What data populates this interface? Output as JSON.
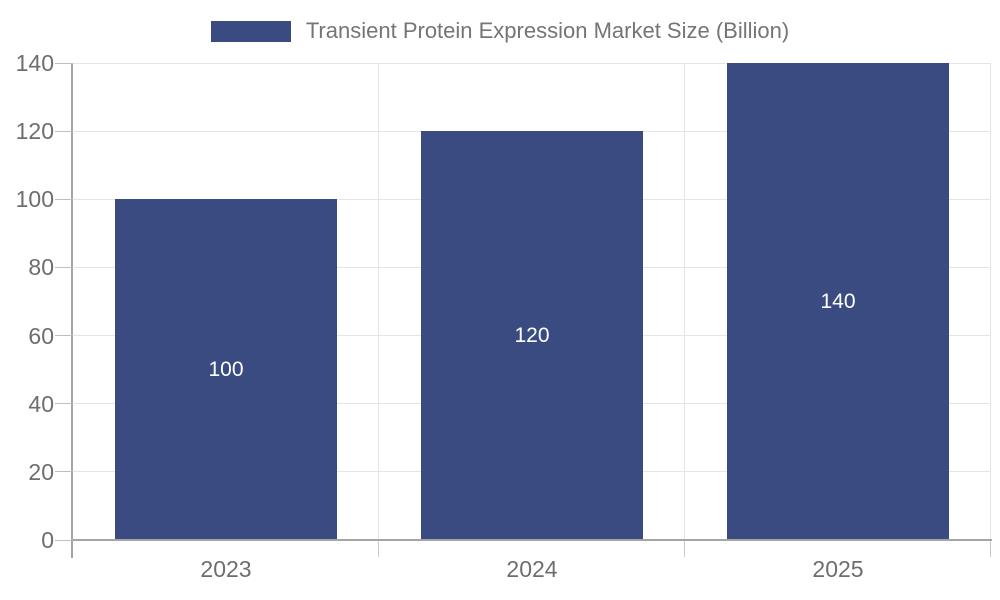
{
  "chart_data": {
    "type": "bar",
    "title": "Transient Protein Expression Market Size (Billion)",
    "categories": [
      "2023",
      "2024",
      "2025"
    ],
    "values": [
      100,
      120,
      140
    ],
    "bar_labels": [
      "100",
      "120",
      "140"
    ],
    "xlabel": "",
    "ylabel": "",
    "ylim": [
      0,
      140
    ],
    "yticks": [
      0,
      20,
      40,
      60,
      80,
      100,
      120,
      140
    ],
    "grid": "on",
    "legend_position": "top-center",
    "series": [
      {
        "name": "Transient Protein Expression Market Size (Billion)",
        "values": [
          100,
          120,
          140
        ]
      }
    ]
  },
  "colors": {
    "bar_fill": "#3A4B82",
    "bar_value_text": "#FFFFFF",
    "legend_text": "#757575",
    "tick_label": "#6E6E6E",
    "gridline": "#E5E5E5",
    "axis_line": "#A5A5A5"
  }
}
